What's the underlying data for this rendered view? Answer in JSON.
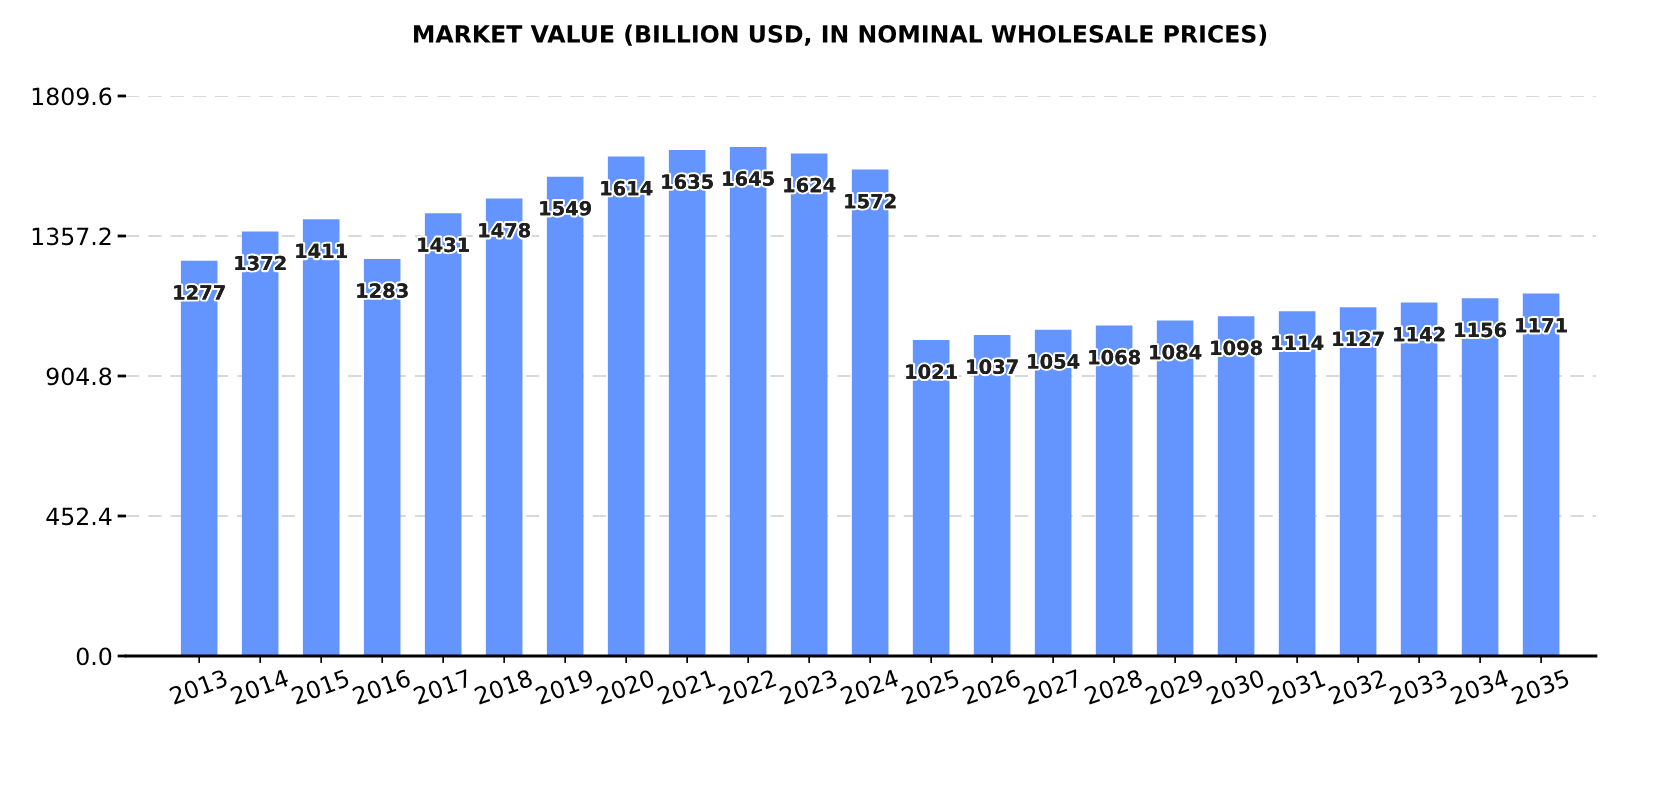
{
  "chart_data": {
    "type": "bar",
    "title": "MARKET VALUE (BILLION USD, IN NOMINAL WHOLESALE PRICES)",
    "categories": [
      "2013",
      "2014",
      "2015",
      "2016",
      "2017",
      "2018",
      "2019",
      "2020",
      "2021",
      "2022",
      "2023",
      "2024",
      "2025",
      "2026",
      "2027",
      "2028",
      "2029",
      "2030",
      "2031",
      "2032",
      "2033",
      "2034",
      "2035"
    ],
    "values": [
      1277,
      1372,
      1411,
      1283,
      1431,
      1478,
      1549,
      1614,
      1635,
      1645,
      1624,
      1572,
      1021,
      1037,
      1054,
      1068,
      1084,
      1098,
      1114,
      1127,
      1142,
      1156,
      1171
    ],
    "color": "#6495fe",
    "ylim": [
      0,
      1809.6
    ],
    "yticks": [
      {
        "value": 0,
        "label": "0.0"
      },
      452.4,
      904.8,
      1357.2,
      1809.6
    ],
    "grid": "y",
    "data_labels": true
  }
}
